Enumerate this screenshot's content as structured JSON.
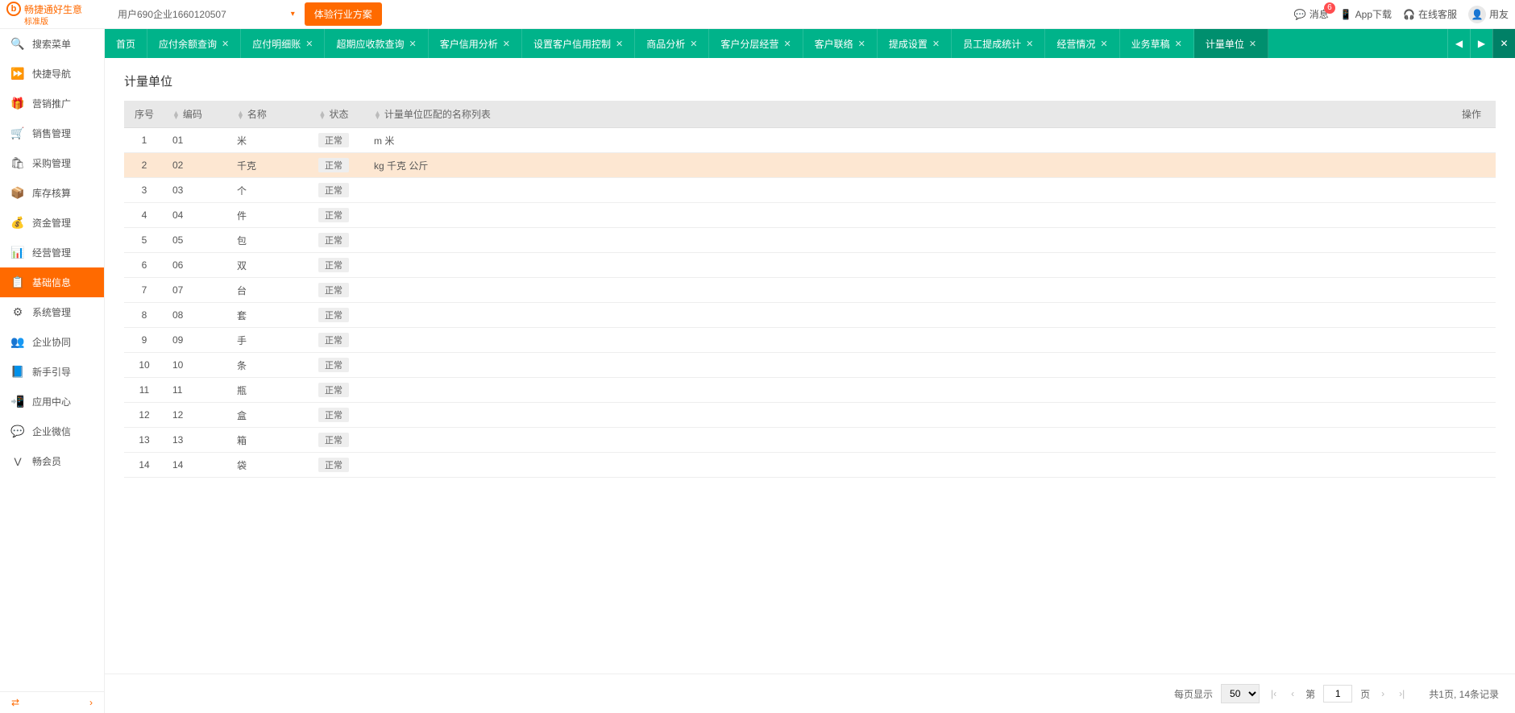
{
  "header": {
    "logo_main": "畅捷通好生意",
    "logo_sub": "标准版",
    "tenant": "用户690企业1660120507",
    "trial_btn": "体验行业方案",
    "msg_label": "消息",
    "msg_badge": "6",
    "app_label": "App下载",
    "service_label": "在线客服",
    "username": "用友"
  },
  "sidebar": {
    "items": [
      {
        "icon": "search",
        "label": "搜索菜单"
      },
      {
        "icon": "nav",
        "label": "快捷导航"
      },
      {
        "icon": "gift",
        "label": "营销推广"
      },
      {
        "icon": "cart",
        "label": "销售管理"
      },
      {
        "icon": "bag",
        "label": "采购管理"
      },
      {
        "icon": "box",
        "label": "库存核算"
      },
      {
        "icon": "money",
        "label": "资金管理"
      },
      {
        "icon": "chart",
        "label": "经营管理"
      },
      {
        "icon": "info",
        "label": "基础信息",
        "active": true
      },
      {
        "icon": "gear",
        "label": "系统管理"
      },
      {
        "icon": "team",
        "label": "企业协同"
      },
      {
        "icon": "guide",
        "label": "新手引导"
      },
      {
        "icon": "app",
        "label": "应用中心"
      },
      {
        "icon": "wechat",
        "label": "企业微信"
      },
      {
        "icon": "vip",
        "label": "畅会员"
      }
    ]
  },
  "tabs": [
    {
      "label": "首页",
      "closable": false
    },
    {
      "label": "应付余额查询",
      "closable": true
    },
    {
      "label": "应付明细账",
      "closable": true
    },
    {
      "label": "超期应收款查询",
      "closable": true
    },
    {
      "label": "客户信用分析",
      "closable": true
    },
    {
      "label": "设置客户信用控制",
      "closable": true
    },
    {
      "label": "商品分析",
      "closable": true
    },
    {
      "label": "客户分层经营",
      "closable": true
    },
    {
      "label": "客户联络",
      "closable": true
    },
    {
      "label": "提成设置",
      "closable": true
    },
    {
      "label": "员工提成统计",
      "closable": true
    },
    {
      "label": "经营情况",
      "closable": true
    },
    {
      "label": "业务草稿",
      "closable": true
    },
    {
      "label": "计量单位",
      "closable": true,
      "active": true
    }
  ],
  "page": {
    "title": "计量单位"
  },
  "table": {
    "columns": {
      "seq": "序号",
      "code": "编码",
      "name": "名称",
      "status": "状态",
      "alias": "计量单位匹配的名称列表",
      "op": "操作"
    },
    "status_label": "正常",
    "rows": [
      {
        "seq": "1",
        "code": "01",
        "name": "米",
        "alias": "m 米"
      },
      {
        "seq": "2",
        "code": "02",
        "name": "千克",
        "alias": "kg 千克 公斤",
        "highlight": true
      },
      {
        "seq": "3",
        "code": "03",
        "name": "个",
        "alias": ""
      },
      {
        "seq": "4",
        "code": "04",
        "name": "件",
        "alias": ""
      },
      {
        "seq": "5",
        "code": "05",
        "name": "包",
        "alias": ""
      },
      {
        "seq": "6",
        "code": "06",
        "name": "双",
        "alias": ""
      },
      {
        "seq": "7",
        "code": "07",
        "name": "台",
        "alias": ""
      },
      {
        "seq": "8",
        "code": "08",
        "name": "套",
        "alias": ""
      },
      {
        "seq": "9",
        "code": "09",
        "name": "手",
        "alias": ""
      },
      {
        "seq": "10",
        "code": "10",
        "name": "条",
        "alias": ""
      },
      {
        "seq": "11",
        "code": "11",
        "name": "瓶",
        "alias": ""
      },
      {
        "seq": "12",
        "code": "12",
        "name": "盒",
        "alias": ""
      },
      {
        "seq": "13",
        "code": "13",
        "name": "箱",
        "alias": ""
      },
      {
        "seq": "14",
        "code": "14",
        "name": "袋",
        "alias": ""
      }
    ]
  },
  "pager": {
    "per_page_label": "每页显示",
    "per_page_value": "50",
    "page_prefix": "第",
    "page_value": "1",
    "page_suffix": "页",
    "summary": "共1页, 14条记录"
  }
}
